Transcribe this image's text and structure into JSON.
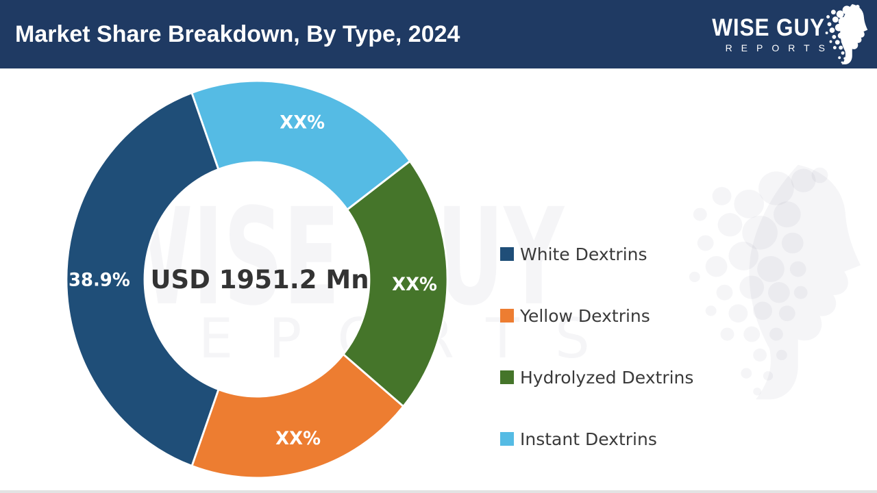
{
  "header": {
    "title": "Market Share Breakdown, By Type, 2024",
    "logo": {
      "name": "WISE GUY",
      "sub": "REPORTS"
    }
  },
  "chart_data": {
    "type": "pie",
    "variant": "donut",
    "title": "Market Share Breakdown, By Type, 2024",
    "center_label": "USD 1951.2 Mn",
    "start_angle_deg": 110,
    "direction": "counterclockwise",
    "legend_position": "right",
    "segments": [
      {
        "label": "White Dextrins",
        "display_value": "38.9%",
        "value_pct": 38.9,
        "color": "#1F4E78"
      },
      {
        "label": "Yellow Dextrins",
        "display_value": "XX%",
        "value_pct": 19.5,
        "color": "#ED7D31"
      },
      {
        "label": "Hydrolyzed Dextrins",
        "display_value": "XX%",
        "value_pct": 21.2,
        "color": "#45752A"
      },
      {
        "label": "Instant Dextrins",
        "display_value": "XX%",
        "value_pct": 20.4,
        "color": "#55BBE4"
      }
    ]
  },
  "watermark": {
    "line1": "WISE GUY",
    "line2": "REPORTS"
  },
  "colors": {
    "header_bg": "#1F3A63",
    "background": "#FFFFFF",
    "bottom_border": "#E3E3E3",
    "center_text": "#333333",
    "legend_text": "#3A3A3A",
    "percent_label": "#FFFFFF"
  }
}
